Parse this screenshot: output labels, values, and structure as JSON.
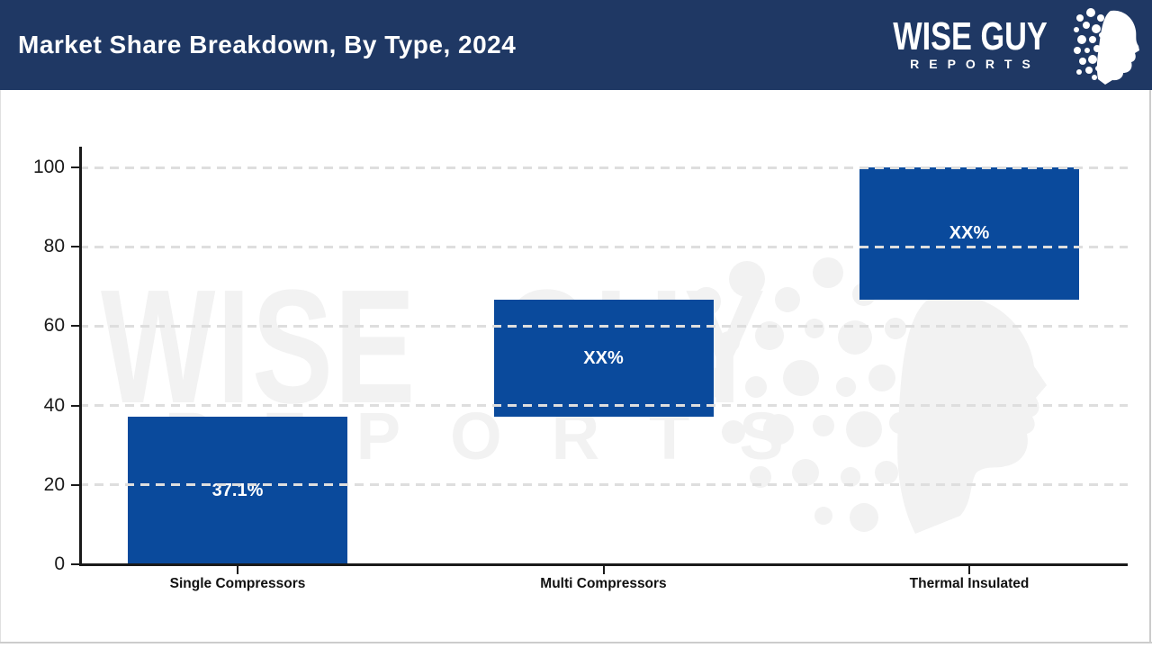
{
  "header": {
    "title": "Market Share Breakdown, By Type, 2024",
    "bg_color": "#1f3864",
    "logo": {
      "primary": "WISE GUY",
      "secondary": "REPORTS"
    }
  },
  "watermark": {
    "primary": "WISE GUY",
    "secondary": "REPORTS"
  },
  "chart_data": {
    "type": "bar",
    "subtype": "waterfall",
    "title": "Market Share Breakdown, By Type, 2024",
    "categories": [
      "Single Compressors",
      "Multi Compressors",
      "Thermal Insulated"
    ],
    "series": [
      {
        "name": "Market share (%)",
        "values": [
          37.1,
          29.6,
          33.3
        ]
      }
    ],
    "segments": [
      {
        "category": "Single Compressors",
        "start": 0,
        "end": 37.1,
        "label": "37.1%"
      },
      {
        "category": "Multi Compressors",
        "start": 37.1,
        "end": 66.7,
        "label": "XX%"
      },
      {
        "category": "Thermal Insulated",
        "start": 66.7,
        "end": 100,
        "label": "XX%"
      }
    ],
    "xlabel": "",
    "ylabel": "",
    "ylim": [
      0,
      100
    ],
    "yticks": [
      0,
      20,
      40,
      60,
      80,
      100
    ],
    "grid": "horizontal-dashed",
    "grid_over_bars": true,
    "legend": "none",
    "colors": {
      "bar": "#0a4a9c",
      "bar_label": "#ffffff",
      "axis": "#1a1a1a",
      "gridline": "#dedede",
      "header_bg": "#1f3864",
      "watermark": "#f2f2f2"
    }
  }
}
